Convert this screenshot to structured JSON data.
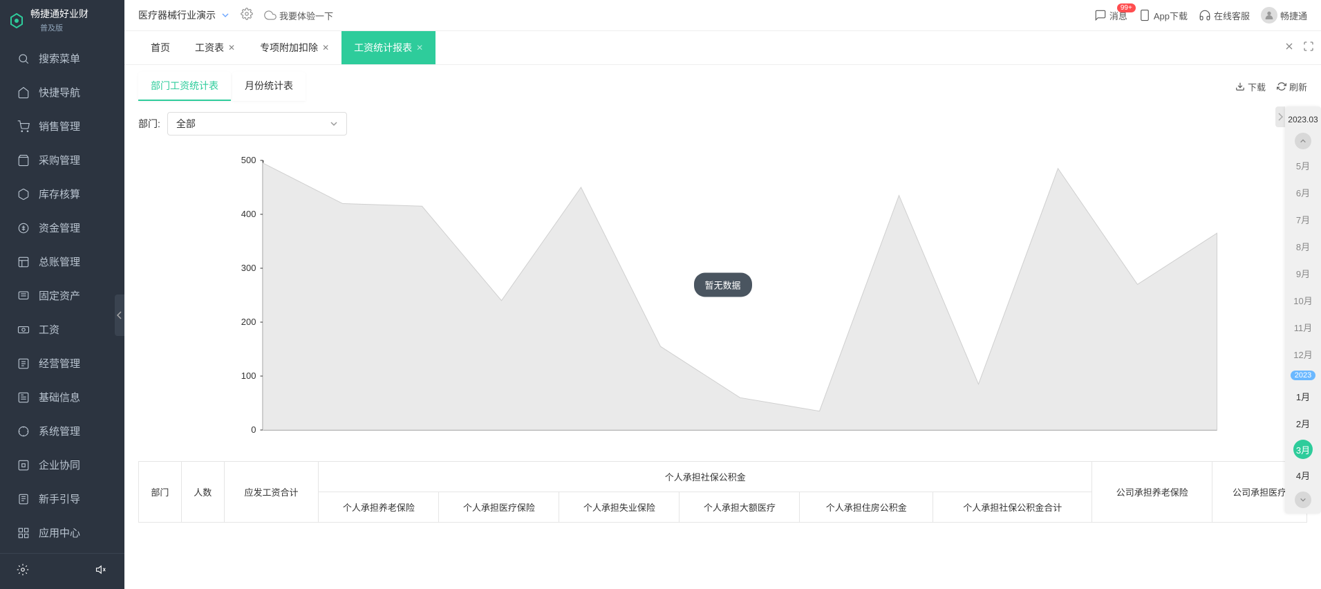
{
  "brand": {
    "name": "畅捷通好业财",
    "edition": "普及版"
  },
  "sidebar": {
    "items": [
      {
        "label": "搜索菜单",
        "icon": "search"
      },
      {
        "label": "快捷导航",
        "icon": "home"
      },
      {
        "label": "销售管理",
        "icon": "cart"
      },
      {
        "label": "采购管理",
        "icon": "bag"
      },
      {
        "label": "库存核算",
        "icon": "box"
      },
      {
        "label": "资金管理",
        "icon": "coin"
      },
      {
        "label": "总账管理",
        "icon": "ledger"
      },
      {
        "label": "固定资产",
        "icon": "asset"
      },
      {
        "label": "工资",
        "icon": "money"
      },
      {
        "label": "经营管理",
        "icon": "biz"
      },
      {
        "label": "基础信息",
        "icon": "info"
      },
      {
        "label": "系统管理",
        "icon": "sys"
      },
      {
        "label": "企业协同",
        "icon": "collab"
      },
      {
        "label": "新手引导",
        "icon": "guide"
      },
      {
        "label": "应用中心",
        "icon": "apps"
      }
    ]
  },
  "topbar": {
    "org": "医疗器械行业演示",
    "experience": "我要体验一下",
    "message": "消息",
    "message_badge": "99+",
    "app_download": "App下载",
    "service": "在线客服",
    "user": "畅捷通"
  },
  "tabs": [
    {
      "label": "首页",
      "closable": false
    },
    {
      "label": "工资表",
      "closable": true
    },
    {
      "label": "专项附加扣除",
      "closable": true
    },
    {
      "label": "工资统计报表",
      "closable": true,
      "active": true
    }
  ],
  "subtabs": [
    {
      "label": "部门工资统计表",
      "active": true
    },
    {
      "label": "月份统计表",
      "active": false
    }
  ],
  "actions": {
    "download": "下载",
    "refresh": "刷新"
  },
  "filter": {
    "label": "部门:",
    "value": "全部"
  },
  "chart": {
    "type": "area",
    "ylim": [
      0,
      500
    ],
    "ytick_step": 100,
    "yticks": [
      0,
      100,
      200,
      300,
      400,
      500
    ],
    "values": [
      495,
      420,
      415,
      240,
      450,
      155,
      60,
      35,
      435,
      85,
      485,
      270,
      365
    ],
    "fill_color": "#eaeaea",
    "stroke_color": "#cfcfcf",
    "axis_color": "#333333",
    "tick_font_size": 13,
    "overlay_text": "暂无数据",
    "overlay_bg": "#4a5560",
    "overlay_text_color": "#ffffff"
  },
  "table": {
    "group_header": "个人承担社保公积金",
    "columns_fixed": [
      "部门",
      "人数",
      "应发工资合计"
    ],
    "columns_group": [
      "个人承担养老保险",
      "个人承担医疗保险",
      "个人承担失业保险",
      "个人承担大额医疗",
      "个人承担住房公积金",
      "个人承担社保公积金合计"
    ],
    "columns_after": [
      "公司承担养老保险",
      "公司承担医疗"
    ]
  },
  "rail": {
    "date": "2023.03",
    "year_badge": "2023",
    "months_prev": [
      "5月",
      "6月",
      "7月",
      "8月",
      "9月",
      "10月",
      "11月",
      "12月"
    ],
    "months_cur": [
      "1月",
      "2月",
      "3月",
      "4月"
    ],
    "active_month": "3月"
  }
}
